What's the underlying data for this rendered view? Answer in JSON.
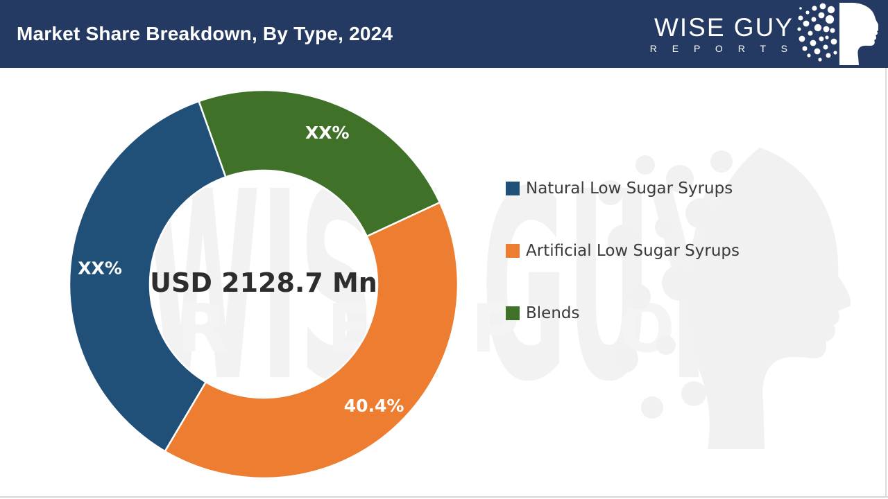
{
  "header": {
    "title": "Market Share Breakdown, By Type, 2024",
    "logo": {
      "line1": "WISE GUY",
      "line2": "R E P O R T S"
    }
  },
  "watermark": {
    "line1": "WISE GUY",
    "line2": "R E P O R T S"
  },
  "chart_data": {
    "type": "donut",
    "title": "Market Share Breakdown, By Type, 2024",
    "center_label": "USD 2128.7 Mn",
    "start_angle_deg": 340.5,
    "draw_sequence": [
      "Blends",
      "Artificial Low Sugar Syrups",
      "Natural Low Sugar Syrups"
    ],
    "segments": [
      {
        "name": "Natural Low Sugar Syrups",
        "label": "XX%",
        "value_pct": 36.1,
        "color": "#204F78"
      },
      {
        "name": "Artificial Low Sugar Syrups",
        "label": "40.4%",
        "value_pct": 40.4,
        "color": "#ED7D31"
      },
      {
        "name": "Blends",
        "label": "XX%",
        "value_pct": 23.5,
        "color": "#3F7128"
      }
    ],
    "legend_position": "right",
    "label_color": "#ffffff"
  },
  "colors": {
    "header_bg": "#243A63",
    "page_bg": "#ffffff",
    "center_text": "#2d2d2d",
    "legend_text": "#3a3a3a",
    "watermark": "#f2f2f2",
    "border_line": "#d6d6d6"
  }
}
